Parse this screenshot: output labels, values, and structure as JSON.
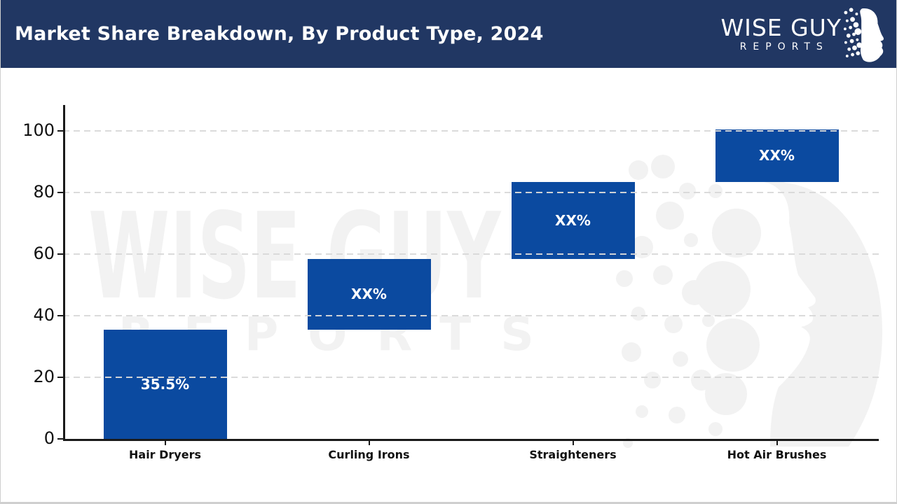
{
  "header": {
    "title": "Market Share Breakdown, By Product Type, 2024",
    "logo": {
      "wordmark": "WISE GUY",
      "subtext": "REPORTS"
    }
  },
  "watermark": {
    "line1": "WISE GUY",
    "line2": "REPORTS"
  },
  "chart_data": {
    "type": "bar",
    "subtype": "waterfall-stacked-breakdown",
    "title": "Market Share Breakdown, By Product Type, 2024",
    "xlabel": "",
    "ylabel": "",
    "categories": [
      "Hair Dryers",
      "Curling Irons",
      "Straighteners",
      "Hot Air Brushes"
    ],
    "segments": [
      {
        "category": "Hair Dryers",
        "start": 0,
        "end": 35.5,
        "label": "35.5%"
      },
      {
        "category": "Curling Irons",
        "start": 35.5,
        "end": 58.5,
        "label": "XX%"
      },
      {
        "category": "Straighteners",
        "start": 58.5,
        "end": 83.5,
        "label": "XX%"
      },
      {
        "category": "Hot Air Brushes",
        "start": 83.5,
        "end": 100.5,
        "label": "XX%"
      }
    ],
    "yticks": [
      0,
      20,
      40,
      60,
      80,
      100
    ],
    "ylim": [
      0,
      108
    ],
    "grid": "dashed-horizontal",
    "legend": "none",
    "colors": {
      "bar": "#0b4aa0",
      "bar_label": "#ffffff",
      "axis": "#1a1a1a",
      "gridline": "#d9d9d9",
      "header_bg": "#213763",
      "header_text": "#ffffff",
      "watermark": "#f2f2f2"
    }
  }
}
